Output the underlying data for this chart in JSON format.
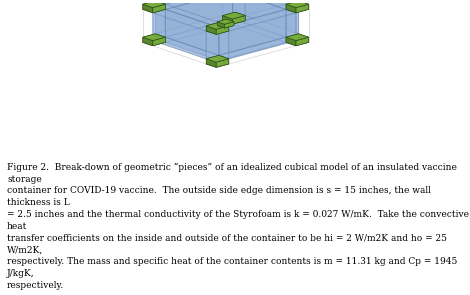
{
  "figure_width": 4.7,
  "figure_height": 2.95,
  "dpi": 100,
  "bg_color": "#ffffff",
  "blue_face": "#8ba7d0",
  "blue_face_alpha": 0.55,
  "blue_edge": "#6080b0",
  "green_corner": "#5a8a3c",
  "green_corner_light": "#7ab85a",
  "green_edge": "#3a6020",
  "gray_line": "#aaaaaa",
  "caption_fontsize": 6.5,
  "caption": "Figure 2.  Break-down of geometric “pieces” of an idealized cubical model of an insulated vaccine storage\ncontainer for COVID-19 vaccine.  The outside side edge dimension is s = 15 inches, the wall thickness is L\n= 2.5 inches and the thermal conductivity of the Styrofoam is k = 0.027 W/mK.  Take the convective heat\ntransfer coefficients on the inside and outside of the container to be hi = 2 W/m2K and ho = 25 W/m2K,\nrespectively. The mass and specific heat of the container contents is m = 11.31 kg and Cp = 1945 J/kgK,\nrespectively."
}
